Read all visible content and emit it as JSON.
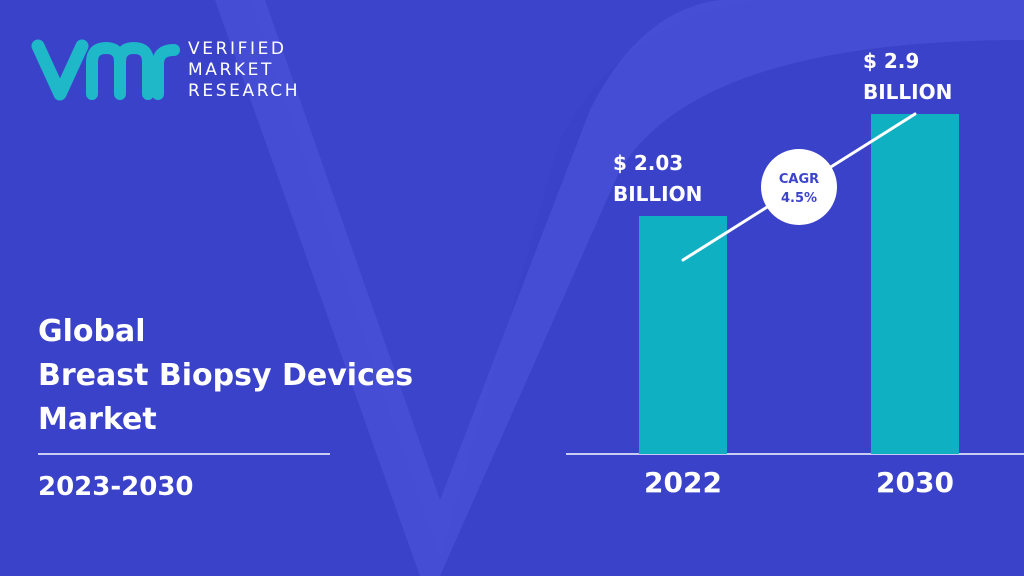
{
  "brand": {
    "lines": [
      "VERIFIED",
      "MARKET",
      "RESEARCH"
    ],
    "logo_color": "#1fb8c9"
  },
  "title": {
    "lines": [
      "Global",
      "Breast Biopsy Devices",
      "Market"
    ]
  },
  "period": "2023-2030",
  "colors": {
    "background": "#3c44cc",
    "background_shape": "#4750d8",
    "bar": "#0fb0c2",
    "text": "#ffffff"
  },
  "chart_data": {
    "type": "bar",
    "categories": [
      "2022",
      "2030"
    ],
    "values": [
      2.03,
      2.9
    ],
    "value_labels": [
      [
        "$ 2.03",
        "BILLION"
      ],
      [
        "$ 2.9",
        "BILLION"
      ]
    ],
    "unit": "$ Billion",
    "annotation": {
      "label": "CAGR",
      "value": "4.5%"
    }
  }
}
